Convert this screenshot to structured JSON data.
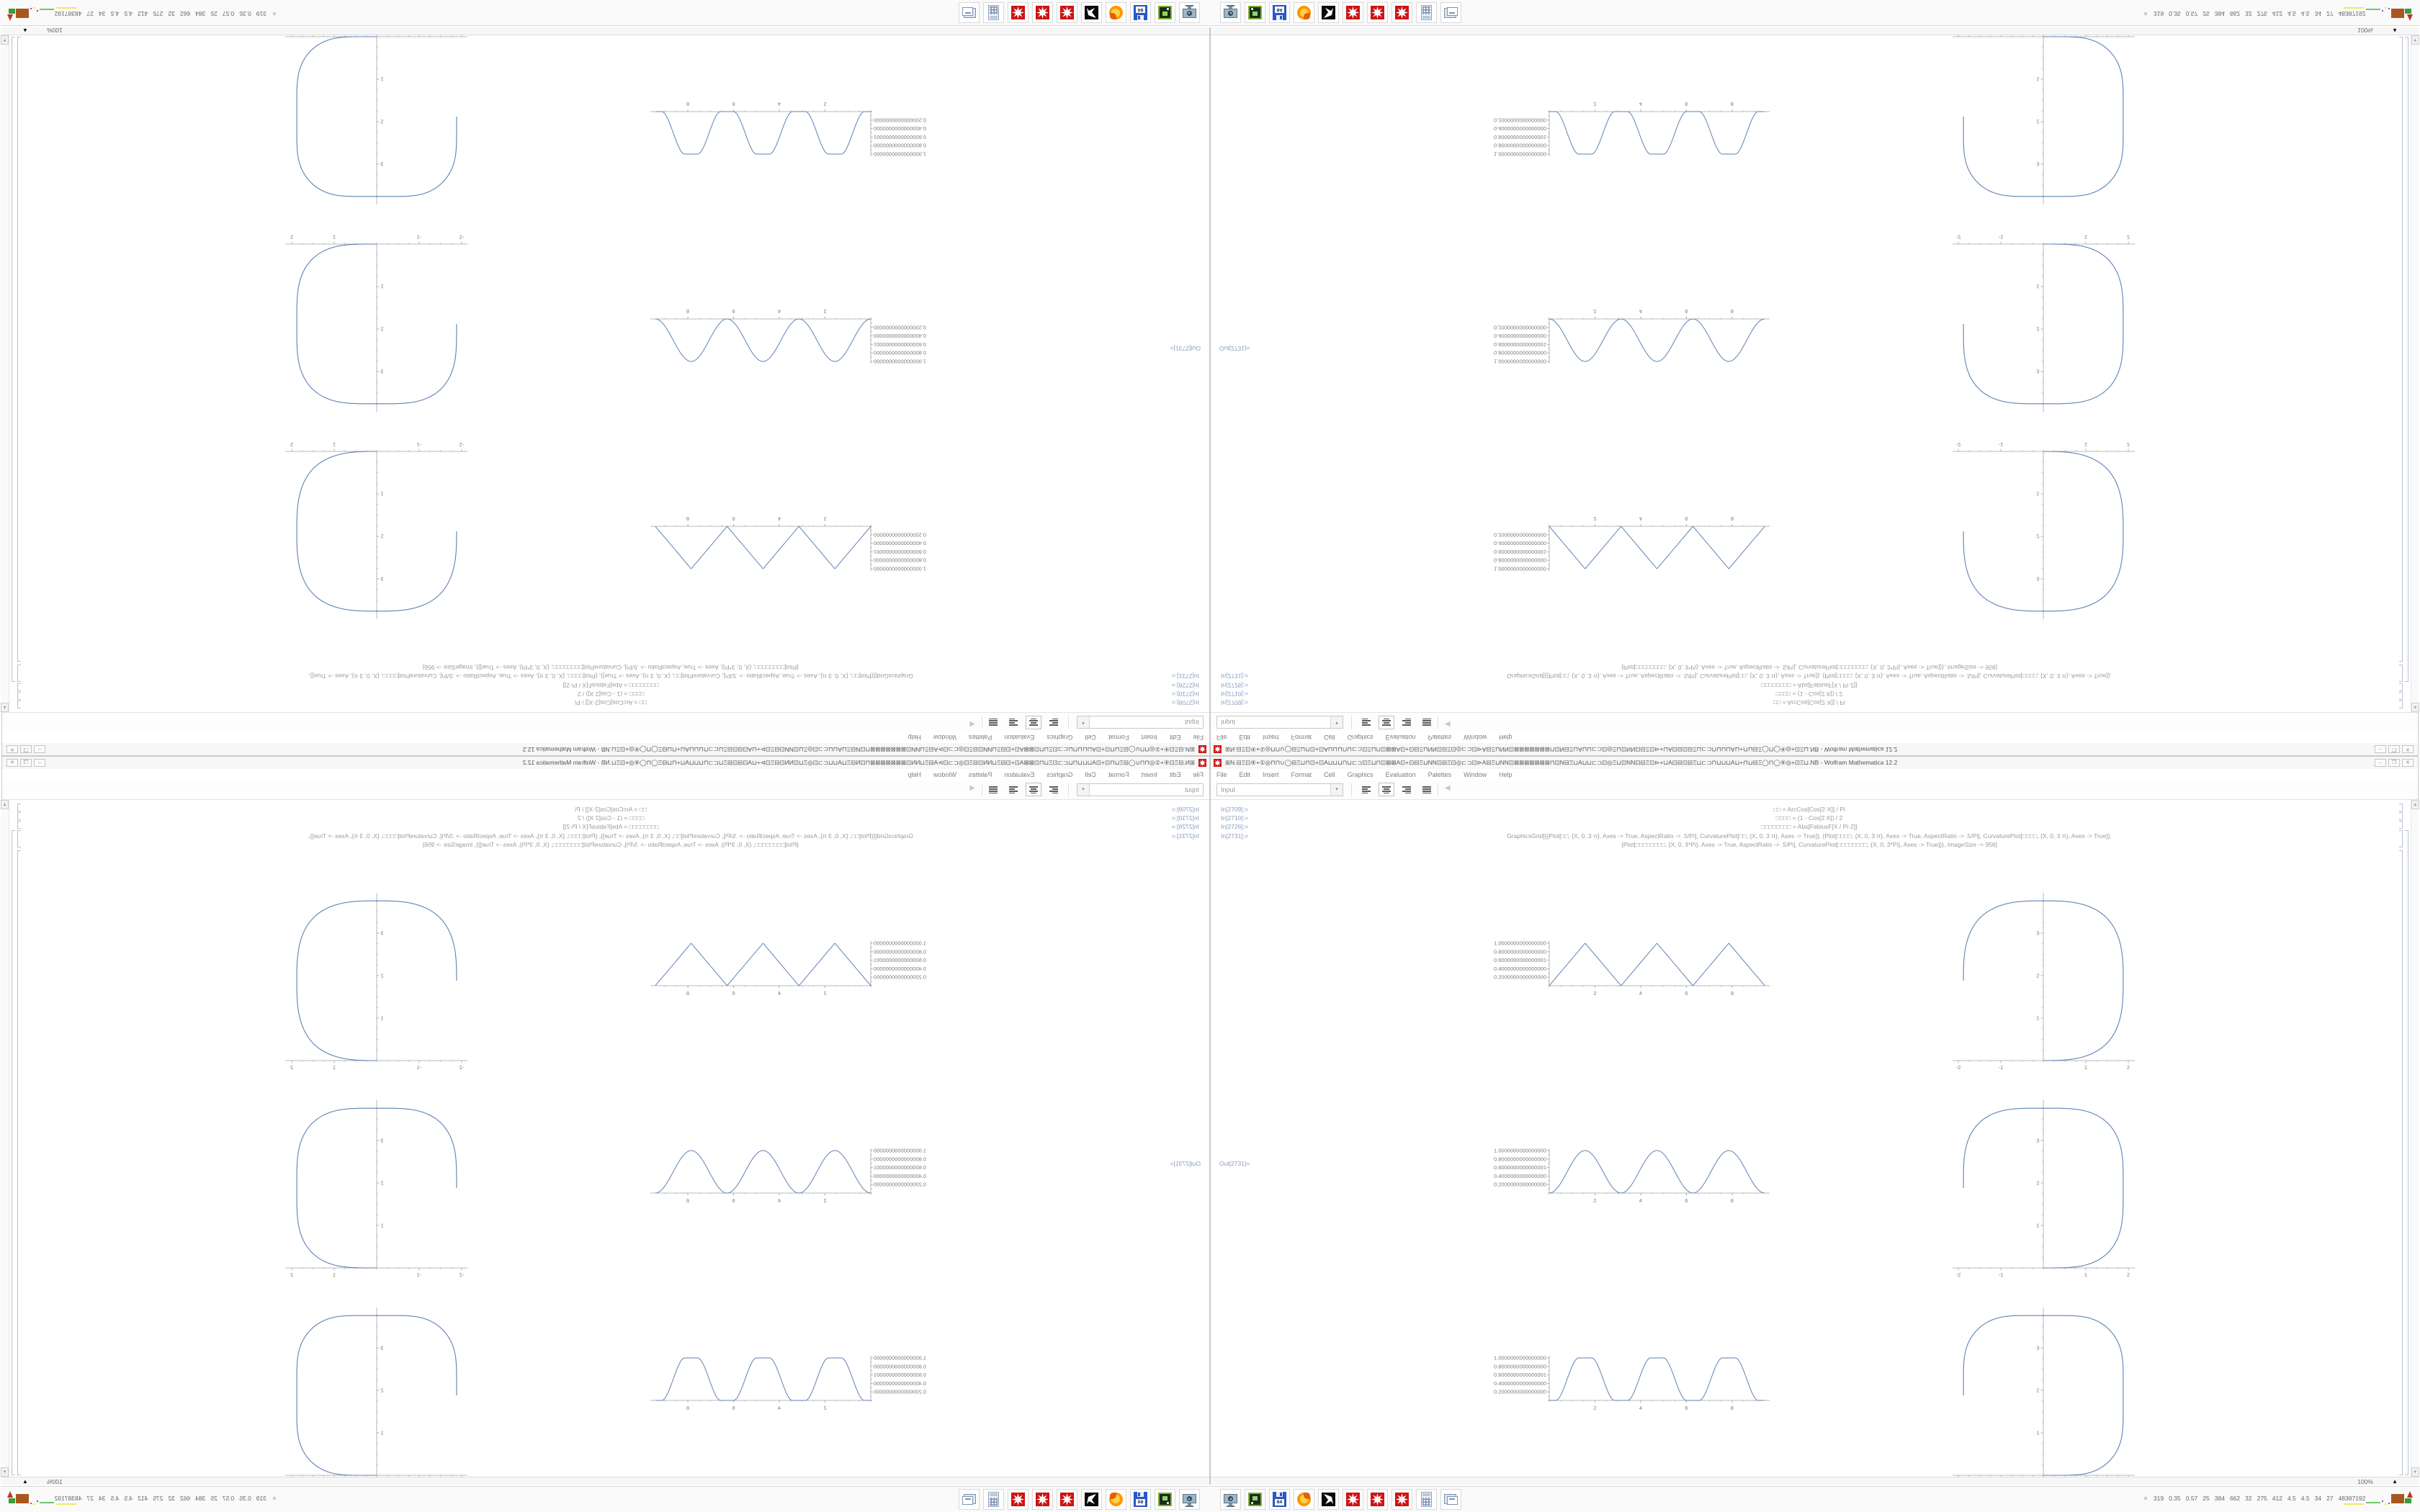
{
  "window": {
    "title": "⊞Ν.⊟Ξ⊡④+①◎⊓⊓∪◯⊟Ξ⊔⊓⊡+⊡Α⊔⊔⊔⊓⊔⊏⊐⊡Ξ⊔⊓⊡⊠⊠Α⊡+⊡⊟Ξ⊔ΝΝ⊡⊟Ξ⊡◎⊏⊐⊡⊳Α⊟Ξ⊔ΝΝ⊡⊠⊠⊠⊠⊠⊠⊠⊓⊡Ν⊟Ξ⊔Α⊔⊔⊏⊐⊡◎Ξ⊔⊡ΝΝ⊡⊟Ξ⊡⊳+⊔Α⊡⊟⊡⊟Ξ⊔⊏⊐⊓⊔⊔⊔Α⊔+⊓⊔⊟Ξ◯⊓◯④◎+⊡Ξ⊔.NB - Wolfram Mathematica 12.2",
    "menu": [
      "File",
      "Edit",
      "Insert",
      "Format",
      "Cell",
      "Graphics",
      "Evaluation",
      "Palettes",
      "Window",
      "Help"
    ],
    "buttons": {
      "minimize": "–",
      "restore": "❐",
      "close": "✕"
    }
  },
  "toolbar": {
    "style_dropdown": "Input"
  },
  "icons": {
    "combo_arrow": "▾",
    "back_arrow": "◀",
    "scroll_up": "▲",
    "scroll_down": "▼",
    "zoom_popup": "▲",
    "tray_collapse": "»"
  },
  "cells": [
    {
      "label": "In[2709]:=",
      "code": "□□ = ArcCos[Cos[2·X]] / Pi"
    },
    {
      "label": "In[2710]:=",
      "code": "□□□□ = (1 - Cos[2 X]) / 2"
    },
    {
      "label": "In[2726]:=",
      "code": "□□□□□□□□ = Abs[FabiusF[X / Pi·2]]"
    },
    {
      "label": "In[2731]:=",
      "code": "GraphicsGrid[{{Plot[□□, {X, 0, 3 π}, Axes -> True, AspectRatio -> .5/Pi], CurvaturePlot[□□, {X, 0, 3 π}, Axes -> True]}, {Plot[□□□□, {X, 0, 3 π}, Axes -> True, AspectRatio -> .5/Pi], CurvaturePlot[□□□□, {X, 0, 3 π}, Axes -> True]},",
      "code2": "{Plot[□□□□□□□□, {X, 0, 3*Pi}, Axes -> True, AspectRatio -> .5/Pi], CurvaturePlot[□□□□□□□□, {X, 0, 3*Pi}, Axes -> True]}}, ImageSize -> 956]"
    }
  ],
  "out_label": "Out[2731]=",
  "statusbar": {
    "zoom_level": "100%"
  },
  "taskbar": {
    "icons": [
      "screen-capture",
      "recorder-green",
      "floppy-64",
      "firefox",
      "black-animal",
      "mathematica",
      "mathematica",
      "mathematica",
      "calculator",
      "window-switcher"
    ]
  },
  "tray": {
    "values": [
      "319",
      "0.35",
      "0.57",
      "25",
      "384",
      "662",
      "32",
      "275",
      "412",
      "4.5",
      "4.5",
      "34",
      "27",
      "48387192"
    ]
  },
  "chart_data": [
    {
      "type": "line",
      "name": "grid-row1-wave",
      "shape": "triangle",
      "formula": "ArcCos[Cos[2 X]]/Pi",
      "x_range": [
        0,
        9.4248
      ],
      "y_range": [
        0,
        1
      ],
      "x_tick_labels": [
        "2",
        "4",
        "6",
        "8"
      ],
      "y_tick_labels": [
        "0.2000000000000000",
        "0.4000000000000000",
        "0.6000000000000001",
        "0.8000000000000000",
        "1.0000000000000000"
      ],
      "peaks_x": [
        1.5708,
        4.7124,
        7.854
      ],
      "zeros_x": [
        0,
        3.1416,
        6.2832,
        9.4248
      ],
      "line_color": "#5e81b5",
      "grid": false
    },
    {
      "type": "line",
      "name": "grid-row1-curvature",
      "source_wave": "triangle",
      "description": "rounded-square curve, 270 degree total turn, open at left",
      "x_tick_labels": [
        "-2",
        "-1",
        "1",
        "2"
      ],
      "y_tick_labels": [
        "1",
        "2",
        "3"
      ],
      "x_range": [
        -2.15,
        2.15
      ],
      "y_range": [
        -0.2,
        3.95
      ],
      "start": [
        0,
        0
      ],
      "line_color": "#5e81b5"
    },
    {
      "type": "line",
      "name": "grid-row2-wave",
      "shape": "sin2",
      "formula": "(1 - Cos[2 X])/2",
      "x_range": [
        0,
        9.4248
      ],
      "y_range": [
        0,
        1
      ],
      "x_tick_labels": [
        "2",
        "4",
        "6",
        "8"
      ],
      "y_tick_labels": [
        "0.2000000000000000",
        "0.4000000000000000",
        "0.6000000000000001",
        "0.8000000000000000",
        "1.0000000000000000"
      ],
      "peaks_x": [
        1.5708,
        4.7124,
        7.854
      ],
      "zeros_x": [
        0,
        3.1416,
        6.2832,
        9.4248
      ],
      "line_color": "#5e81b5",
      "grid": false
    },
    {
      "type": "line",
      "name": "grid-row2-curvature",
      "source_wave": "sin2",
      "description": "rounded-square curve, 270 degree total turn, open at left",
      "x_tick_labels": [
        "-2",
        "-1",
        "1",
        "2"
      ],
      "y_tick_labels": [
        "1",
        "2",
        "3"
      ],
      "x_range": [
        -2.15,
        2.15
      ],
      "y_range": [
        -0.2,
        3.95
      ],
      "start": [
        0,
        0
      ],
      "line_color": "#5e81b5"
    },
    {
      "type": "line",
      "name": "grid-row3-wave",
      "shape": "fabius",
      "formula": "Abs[FabiusF[X/Pi 2]]",
      "x_range": [
        0,
        9.4248
      ],
      "y_range": [
        0,
        1
      ],
      "x_tick_labels": [
        "2",
        "4",
        "6",
        "8"
      ],
      "y_tick_labels": [
        "0.2000000000000000",
        "0.4000000000000000",
        "0.6000000000000001",
        "0.8000000000000000",
        "1.0000000000000000"
      ],
      "peaks_x": [
        1.5708,
        4.7124,
        7.854
      ],
      "zeros_x": [
        0,
        3.1416,
        6.2832,
        9.4248
      ],
      "line_color": "#5e81b5",
      "grid": false
    },
    {
      "type": "line",
      "name": "grid-row3-curvature",
      "source_wave": "fabius",
      "description": "rounded-square curve, 270 degree total turn, open at left",
      "x_tick_labels": [
        "-2",
        "-1",
        "1",
        "2"
      ],
      "y_tick_labels": [
        "1",
        "2",
        "3"
      ],
      "x_range": [
        -2.15,
        2.15
      ],
      "y_range": [
        -0.2,
        3.95
      ],
      "start": [
        0,
        0
      ],
      "line_color": "#5e81b5"
    }
  ]
}
